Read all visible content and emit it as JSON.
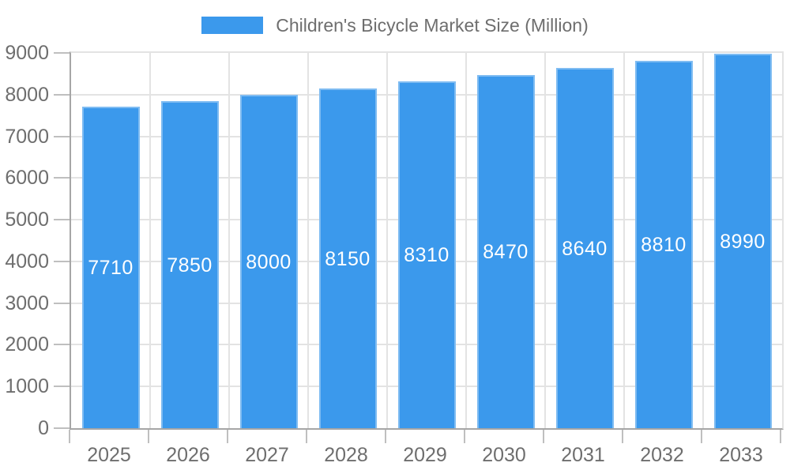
{
  "chart_data": {
    "type": "bar",
    "title": "Children's Bicycle Market Size (Million)",
    "categories": [
      "2025",
      "2026",
      "2027",
      "2028",
      "2029",
      "2030",
      "2031",
      "2032",
      "2033"
    ],
    "values": [
      7710,
      7850,
      8000,
      8150,
      8310,
      8470,
      8640,
      8810,
      8990
    ],
    "bar_value_labels": [
      "7710",
      "7850",
      "8000",
      "8150",
      "8310",
      "8470",
      "8640",
      "8810",
      "8990"
    ],
    "xlabel": "",
    "ylabel": "",
    "ylim": [
      0,
      9000
    ],
    "ytick_step": 1000,
    "y_tick_labels": [
      "0",
      "1000",
      "2000",
      "3000",
      "4000",
      "5000",
      "6000",
      "7000",
      "8000",
      "9000"
    ],
    "grid": true,
    "legend_position": "top",
    "colors": {
      "bar": "#3B99EC",
      "bar_border": "rgba(255,255,255,0.35)",
      "bar_label_text": "#FFFFFF",
      "axis_text": "#6E6E6E",
      "grid_line": "#E3E3E3",
      "axis_line": "#A6A6A6",
      "tick_mark": "#BFBFBF",
      "background": "#FFFFFF"
    }
  }
}
